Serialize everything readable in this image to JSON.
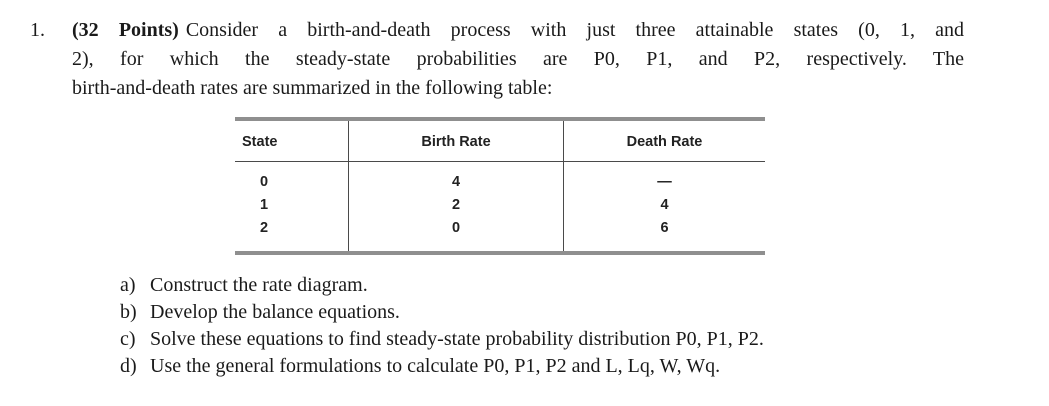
{
  "page": {
    "background": "#ffffff",
    "text_color": "#1a1a1a",
    "table_rule_color": "#8f8f8f"
  },
  "problem": {
    "number": "1.",
    "points_label": "(32 Points)",
    "intro_lines": [
      "Consider a birth-and-death process with just three attainable states (0, 1, and",
      "2), for which the steady-state probabilities are P0, P1, and P2, respectively. The",
      "birth-and-death rates are summarized in the following table:"
    ]
  },
  "table": {
    "headers": [
      "State",
      "Birth Rate",
      "Death Rate"
    ],
    "rows": [
      {
        "state": "0",
        "birth_rate": "4",
        "death_rate": "—"
      },
      {
        "state": "1",
        "birth_rate": "2",
        "death_rate": "4"
      },
      {
        "state": "2",
        "birth_rate": "0",
        "death_rate": "6"
      }
    ]
  },
  "questions": [
    {
      "label": "a)",
      "text": "Construct the rate diagram."
    },
    {
      "label": "b)",
      "text": "Develop the balance equations."
    },
    {
      "label": "c)",
      "text": "Solve these equations to find steady-state probability distribution P0, P1, P2."
    },
    {
      "label": "d)",
      "text": "Use the general formulations to calculate P0, P1, P2 and L, Lq, W, Wq."
    }
  ]
}
